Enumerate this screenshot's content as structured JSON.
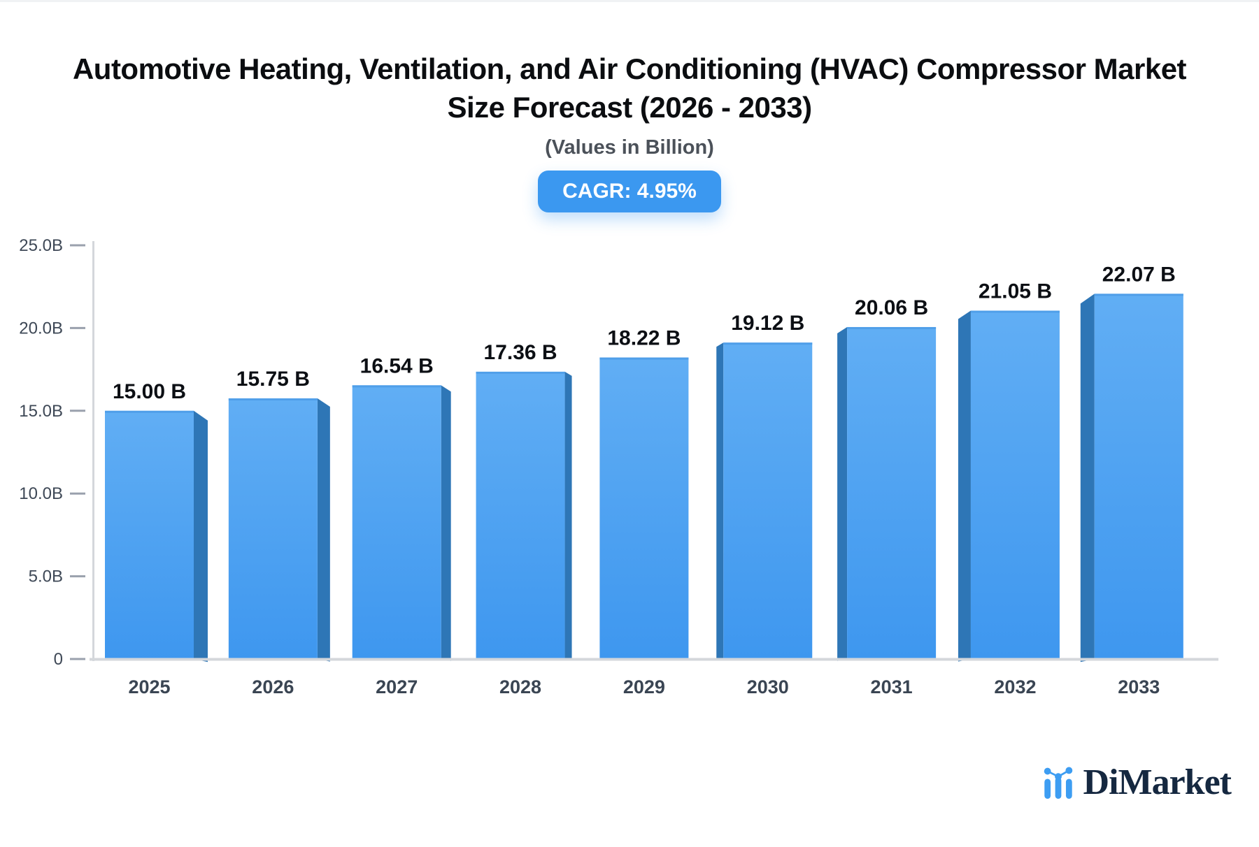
{
  "header": {
    "title": "Automotive Heating, Ventilation, and Air Conditioning (HVAC) Compressor Market\nSize Forecast (2026 - 2033)",
    "subtitle": "(Values in Billion)",
    "cagr_badge": "CAGR: 4.95%"
  },
  "chart_data": {
    "type": "bar",
    "title": "Automotive Heating, Ventilation, and Air Conditioning (HVAC) Compressor Market Size Forecast (2026 - 2033)",
    "subtitle": "(Values in Billion)",
    "cagr": "4.95%",
    "categories": [
      "2025",
      "2026",
      "2027",
      "2028",
      "2029",
      "2030",
      "2031",
      "2032",
      "2033"
    ],
    "values": [
      15.0,
      15.75,
      16.54,
      17.36,
      18.22,
      19.12,
      20.06,
      21.05,
      22.07
    ],
    "value_labels": [
      "15.00 B",
      "15.75 B",
      "16.54 B",
      "17.36 B",
      "18.22 B",
      "19.12 B",
      "20.06 B",
      "21.05 B",
      "22.07 B"
    ],
    "unit": "Billion",
    "xlabel": "",
    "ylabel": "",
    "ylim": [
      0,
      25
    ],
    "yticks": [
      {
        "label": "25.0B",
        "value": 25
      },
      {
        "label": "20.0B",
        "value": 20
      },
      {
        "label": "15.0B",
        "value": 15
      },
      {
        "label": "10.0B",
        "value": 10
      },
      {
        "label": "5.0B",
        "value": 5
      },
      {
        "label": "0",
        "value": 0
      }
    ],
    "grid": false,
    "legend": false,
    "style": "3d-perspective-bars",
    "colors": {
      "bar_top": "#61aef4",
      "bar_bottom": "#3e97ef",
      "bar_side": "#2e76b6",
      "bar_top_edge": "#4f9de8",
      "axis": "#d4d7db",
      "tick_dash": "#9aa1ad",
      "tick_text": "#3e4856",
      "label_text": "#0c0f14",
      "category_text": "#3a4553",
      "badge_bg": "#3b98f0"
    }
  },
  "logo": {
    "text": "DiMarket",
    "icon": "mini-bar-chart-icon",
    "text_color": "#152840",
    "accent_color": "#3d9df2"
  }
}
